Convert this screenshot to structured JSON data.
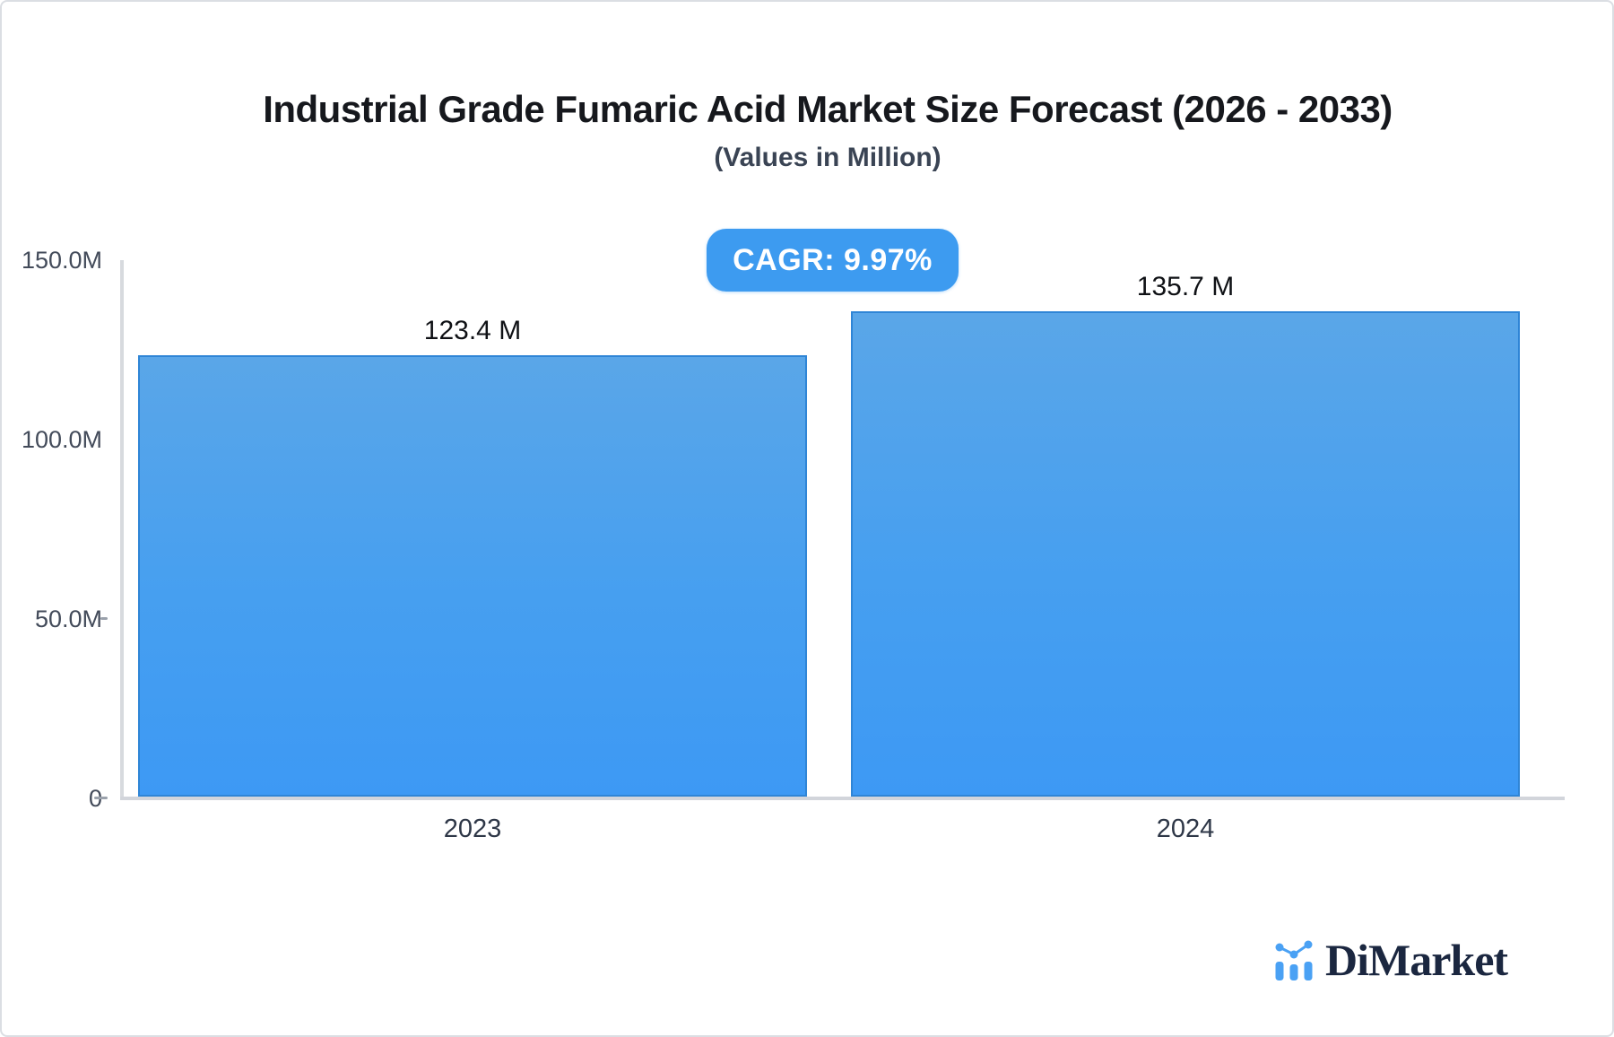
{
  "header": {
    "title": "Industrial Grade Fumaric Acid Market Size Forecast (2026 - 2033)",
    "subtitle": "(Values in Million)",
    "cagr_label": "CAGR: 9.97%"
  },
  "chart_data": {
    "type": "bar",
    "title": "Industrial Grade Fumaric Acid Market Size Forecast (2026 - 2033)",
    "subtitle": "(Values in Million)",
    "unit": "Million",
    "cagr_percent": 9.97,
    "categories": [
      "2023",
      "2024"
    ],
    "values": [
      123.4,
      135.7
    ],
    "value_labels": [
      "123.4 M",
      "135.7 M"
    ],
    "ylim": [
      0,
      150
    ],
    "y_ticks": [
      {
        "value": 0,
        "label": "0",
        "dash": "long"
      },
      {
        "value": 50,
        "label": "50.0M",
        "dash": "short"
      },
      {
        "value": 100,
        "label": "100.0M",
        "dash": "none"
      },
      {
        "value": 150,
        "label": "150.0M",
        "dash": "none"
      }
    ],
    "grid": false,
    "legend": false,
    "bar_fill_top": "#5aa6e8",
    "bar_fill_bottom": "#3d99f4",
    "bar_border_color": "#2f85d6",
    "axis_color": "#d2d5db",
    "label_color": "#0f1115"
  },
  "badge": {
    "background": "#3d9bf0",
    "text_color": "#ffffff"
  },
  "branding": {
    "logo_text": "DiMarket",
    "logo_icon": "bar-chart-trend-icon",
    "icon_color": "#4aa1f4",
    "text_color": "#1b2740"
  }
}
